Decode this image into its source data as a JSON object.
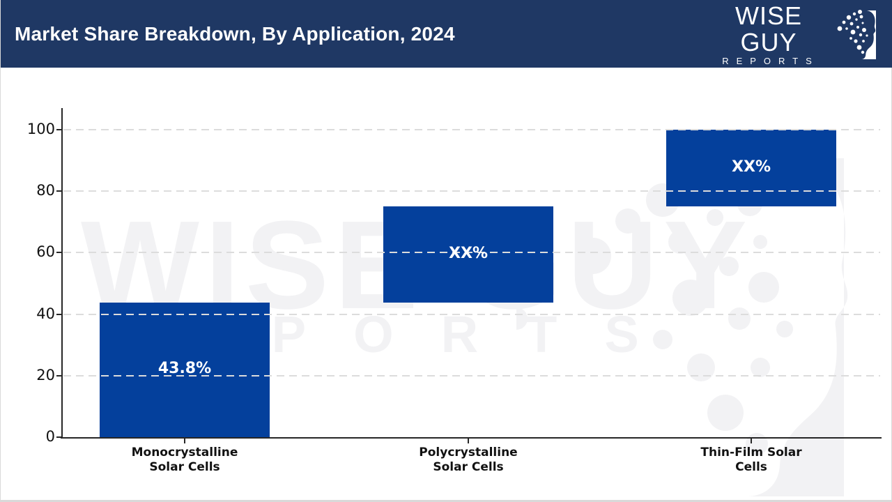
{
  "header": {
    "title": "Market Share Breakdown, By Application, 2024",
    "bg_color": "#1f3864",
    "logo": {
      "line1": "WISE GUY",
      "line2": "REPORTS"
    }
  },
  "watermark": {
    "line1": "WISE GUY",
    "line2": "REPORTS"
  },
  "chart_data": {
    "type": "bar",
    "subtype": "floating-waterfall",
    "title": "Market Share Breakdown, By Application, 2024",
    "xlabel": "",
    "ylabel": "",
    "ylim": [
      0,
      100
    ],
    "grid": "dashed horizontal lines at y ticks, drawn over bars",
    "legend_position": "none",
    "bar_color": "#04409c",
    "bar_label_color": "#ffffff",
    "yticks": [
      0,
      20,
      40,
      60,
      80,
      100
    ],
    "categories": [
      {
        "line1": "Monocrystalline",
        "line2": "Solar Cells"
      },
      {
        "line1": "Polycrystalline",
        "line2": "Solar Cells"
      },
      {
        "line1": "Thin-Film Solar",
        "line2": "Cells"
      }
    ],
    "segments": [
      {
        "category": "Monocrystalline Solar Cells",
        "start": 0,
        "end": 43.8,
        "label": "43.8%"
      },
      {
        "category": "Polycrystalline Solar Cells",
        "start": 43.8,
        "end": 75,
        "label": "XX%"
      },
      {
        "category": "Thin-Film Solar Cells",
        "start": 75,
        "end": 100,
        "label": "XX%"
      }
    ]
  }
}
